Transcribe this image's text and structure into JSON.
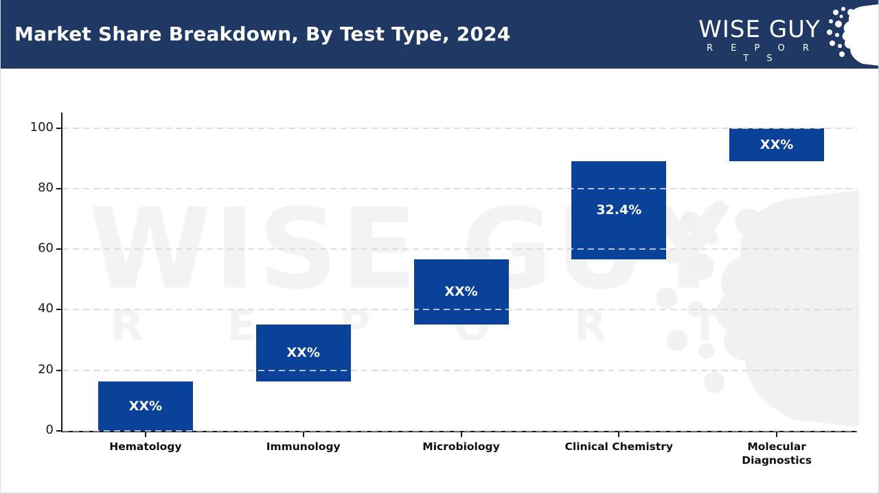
{
  "header": {
    "title": "Market Share Breakdown, By Test Type, 2024",
    "logo": {
      "line1": "WISE GUY",
      "line2": "R E P O R T S"
    }
  },
  "watermark": {
    "line1": "WISE GUY",
    "line2": "R E P O R T S"
  },
  "chart_data": {
    "type": "bar",
    "subtype": "waterfall",
    "title": "Market Share Breakdown, By Test Type, 2024",
    "xlabel": "",
    "ylabel": "",
    "ylim": [
      0,
      100
    ],
    "yticks": [
      0,
      20,
      40,
      60,
      80,
      100
    ],
    "grid": "horizontal dashed",
    "legend": "none",
    "bar_color": "#0a4299",
    "categories": [
      "Hematology",
      "Immunology",
      "Microbiology",
      "Clinical Chemistry",
      "Molecular Diagnostics"
    ],
    "segments": [
      {
        "category": "Hematology",
        "start": 0,
        "end": 16.3,
        "label": "XX%"
      },
      {
        "category": "Immunology",
        "start": 16.3,
        "end": 35.2,
        "label": "XX%"
      },
      {
        "category": "Microbiology",
        "start": 35.2,
        "end": 56.7,
        "label": "XX%"
      },
      {
        "category": "Clinical Chemistry",
        "start": 56.7,
        "end": 89.1,
        "label": "32.4%"
      },
      {
        "category": "Molecular Diagnostics",
        "start": 89.1,
        "end": 100,
        "label": "XX%"
      }
    ]
  }
}
